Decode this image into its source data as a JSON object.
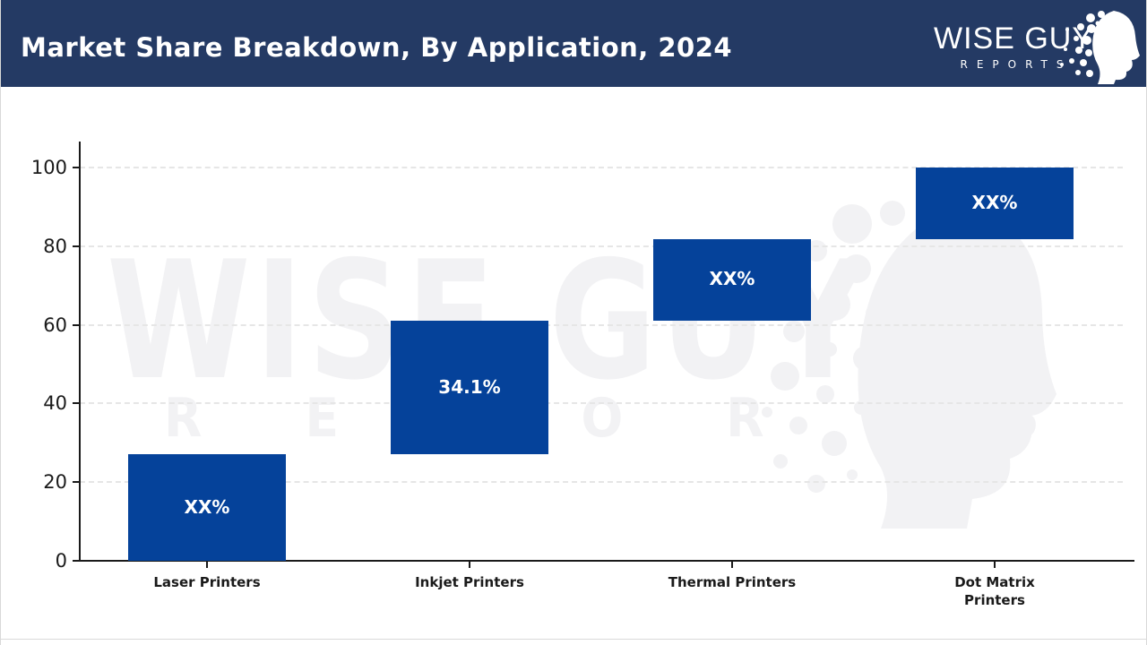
{
  "header": {
    "title": "Market Share Breakdown, By Application, 2024",
    "logo": {
      "line1": "WISE GUY",
      "line2": "REPORTS"
    }
  },
  "watermark": {
    "line1": "WISE GUY",
    "line2": "R E P O R T S"
  },
  "colors": {
    "header_navy": "#243a64",
    "bar_blue": "#05429a",
    "axis": "#1a1a1a",
    "grid": "#e6e6e6",
    "watermark_gray": "#f2f2f4"
  },
  "chart_data": {
    "type": "bar",
    "subtype": "waterfall-floating-bars",
    "title": "Market Share Breakdown, By Application, 2024",
    "xlabel": "",
    "ylabel": "",
    "ylim": [
      0,
      100
    ],
    "yticks": [
      0,
      20,
      40,
      60,
      80,
      100
    ],
    "grid": "horizontal-dashed",
    "legend": "none",
    "categories": [
      "Laser Printers",
      "Inkjet Printers",
      "Thermal Printers",
      "Dot Matrix Printers"
    ],
    "category_lines": [
      [
        "Laser Printers"
      ],
      [
        "Inkjet Printers"
      ],
      [
        "Thermal Printers"
      ],
      [
        "Dot Matrix",
        "Printers"
      ]
    ],
    "bars": [
      {
        "category": "Laser Printers",
        "start": 0,
        "end": 27,
        "segment_height": 27,
        "value_label": "XX%"
      },
      {
        "category": "Inkjet Printers",
        "start": 27,
        "end": 61.1,
        "segment_height": 34.1,
        "value_label": "34.1%"
      },
      {
        "category": "Thermal Printers",
        "start": 61.1,
        "end": 81.8,
        "segment_height": 20.7,
        "value_label": "XX%"
      },
      {
        "category": "Dot Matrix Printers",
        "start": 81.8,
        "end": 100,
        "segment_height": 18.2,
        "value_label": "XX%"
      }
    ]
  }
}
